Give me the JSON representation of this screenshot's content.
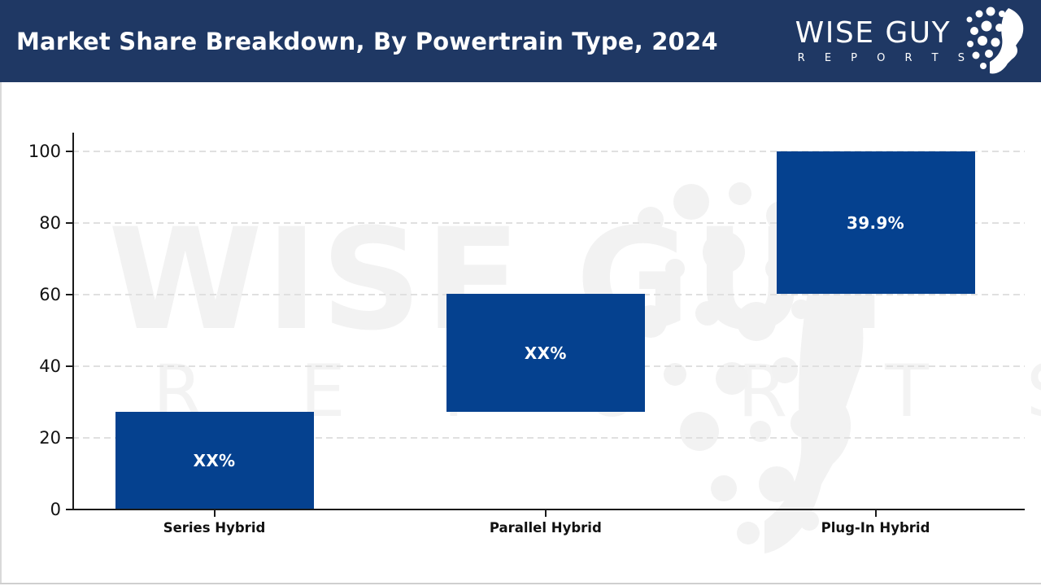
{
  "header": {
    "title": "Market Share Breakdown, By Powertrain Type, 2024",
    "bg_color": "#1f3864",
    "logo": {
      "line1": "WISE GUY",
      "line2": "R E P O R T S"
    }
  },
  "watermark": {
    "line1": "WISE GUY",
    "line2": "R E P O R T S"
  },
  "chart_data": {
    "type": "bar",
    "subtype": "stacked-waterfall-segments",
    "title": "Market Share Breakdown, By Powertrain Type, 2024",
    "categories": [
      "Series Hybrid",
      "Parallel Hybrid",
      "Plug-In Hybrid"
    ],
    "segments": [
      {
        "category": "Series Hybrid",
        "start": 0,
        "end": 27.2,
        "value_label": "XX%"
      },
      {
        "category": "Parallel Hybrid",
        "start": 27.2,
        "end": 60.1,
        "value_label": "XX%"
      },
      {
        "category": "Plug-In Hybrid",
        "start": 60.1,
        "end": 100,
        "value_label": "39.9%"
      }
    ],
    "yticks": [
      0,
      20,
      40,
      60,
      80,
      100
    ],
    "ylim": [
      0,
      105
    ],
    "xlabel": "",
    "ylabel": "",
    "grid": "horizontal-dashed",
    "legend": "none",
    "bar_color": "#05418f",
    "bar_label_color": "#ffffff",
    "axis_color": "#1a1a1a",
    "gridline_color": "#e0e0e0"
  }
}
